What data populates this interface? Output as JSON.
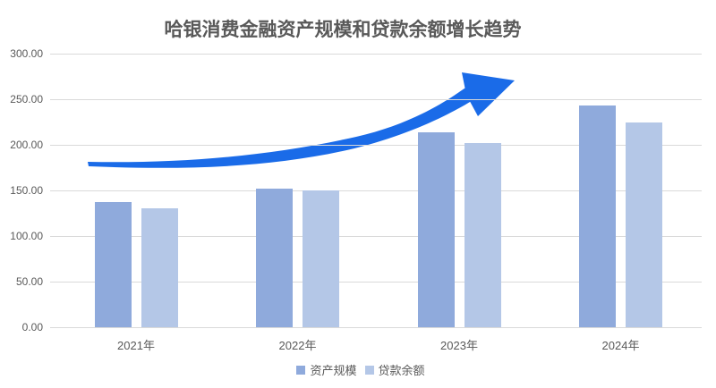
{
  "chart_data": {
    "type": "bar",
    "title": "哈银消费金融资产规模和贷款余额增长趋势",
    "categories": [
      "2021年",
      "2022年",
      "2023年",
      "2024年"
    ],
    "series": [
      {
        "name": "资产规模",
        "color": "#8FAADC",
        "values": [
          137,
          152,
          214,
          243
        ]
      },
      {
        "name": "贷款余额",
        "color": "#B4C7E7",
        "values": [
          130,
          150,
          202,
          225
        ]
      }
    ],
    "ylim": [
      0,
      300
    ],
    "ytick_labels": [
      "300.00",
      "250.00",
      "200.00",
      "150.00",
      "100.00",
      "50.00",
      "0.00"
    ],
    "xlabel": "",
    "ylabel": "",
    "grid": true,
    "legend_position": "bottom",
    "annotation_arrow": {
      "description": "upward growth trend swoosh arrow",
      "color": "#1A6BE8"
    },
    "colors": {
      "title_text": "#595959",
      "axis_text": "#595959",
      "gridline": "#D9D9D9",
      "background": "#FFFFFF"
    }
  }
}
